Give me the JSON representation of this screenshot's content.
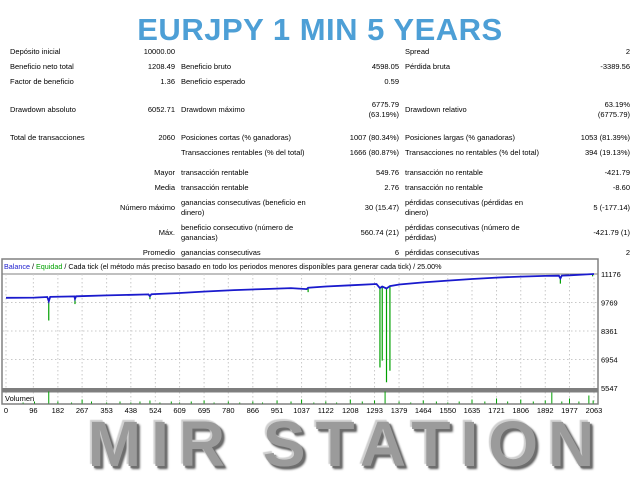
{
  "title": "EURJPY 1 MIN 5 YEARS",
  "watermark": "MIR STATION",
  "colors": {
    "title_blue": "#4d9fd6",
    "balance": "#1a1acd",
    "equity": "#00a000",
    "grid": "#c8c8c8",
    "border": "#808080",
    "watermark_gray": "#9b9b9b"
  },
  "stats": {
    "rows": [
      [
        "Depósito inicial",
        "10000.00",
        "",
        "",
        "Spread",
        "2"
      ],
      [
        "Beneficio neto total",
        "1208.49",
        "Beneficio bruto",
        "4598.05",
        "Pérdida bruta",
        "-3389.56"
      ],
      [
        "Factor de beneficio",
        "1.36",
        "Beneficio esperado",
        "0.59",
        "",
        ""
      ],
      [
        "Drawdown absoluto",
        "6052.71",
        "Drawdown máximo",
        "6775.79\n(63.19%)",
        "Drawdown relativo",
        "63.19%\n(6775.79)"
      ],
      [
        "Total de transacciones",
        "2060",
        "Posiciones cortas (% ganadoras)",
        "1007 (80.34%)",
        "Posiciones largas (% ganadoras)",
        "1053 (81.39%)"
      ],
      [
        "",
        "",
        "Transacciones rentables (% del total)",
        "1666 (80.87%)",
        "Transacciones no rentables (% del total)",
        "394 (19.13%)"
      ],
      [
        "Mayor",
        "",
        "transacción rentable",
        "549.76",
        "transacción no rentable",
        "-421.79"
      ],
      [
        "Media",
        "",
        "transacción rentable",
        "2.76",
        "transacción no rentable",
        "-8.60"
      ],
      [
        "Número máximo",
        "",
        "ganancias consecutivas (beneficio en\ndinero)",
        "30 (15.47)",
        "pérdidas consecutivas (pérdidas en\ndinero)",
        "5 (-177.14)"
      ],
      [
        "Máx.",
        "",
        "beneficio consecutivo (número de\nganancias)",
        "560.74 (21)",
        "pérdidas consecutivas (número de\npérdidas)",
        "-421.79 (1)"
      ],
      [
        "Promedio",
        "",
        "ganancias consecutivas",
        "6",
        "pérdidas consecutivas",
        "2"
      ]
    ]
  },
  "chart_data": {
    "type": "line",
    "header": {
      "balance_label": "Balance",
      "equity_label": "Equidad",
      "description": "Cada tick (el método más preciso basado en todo los periodos menores disponibles para generar cada tick)",
      "quality": "25.00%"
    },
    "volume_label": "Volumen",
    "xlim": [
      0,
      2063
    ],
    "ylim": [
      5547,
      11176
    ],
    "x_ticks": [
      0,
      96,
      182,
      267,
      353,
      438,
      524,
      609,
      695,
      780,
      866,
      951,
      1037,
      1122,
      1208,
      1293,
      1379,
      1464,
      1550,
      1635,
      1721,
      1806,
      1892,
      1977,
      2063
    ],
    "y_ticks": [
      5547,
      6954,
      8361,
      9769,
      11176
    ],
    "grid": true,
    "legend_position": "top-left",
    "balance": [
      [
        0,
        10000
      ],
      [
        100,
        10010
      ],
      [
        145,
        10040
      ],
      [
        150,
        9830
      ],
      [
        155,
        10045
      ],
      [
        240,
        10070
      ],
      [
        242,
        9950
      ],
      [
        246,
        10075
      ],
      [
        353,
        10120
      ],
      [
        500,
        10170
      ],
      [
        505,
        10080
      ],
      [
        510,
        10180
      ],
      [
        609,
        10240
      ],
      [
        700,
        10310
      ],
      [
        800,
        10380
      ],
      [
        900,
        10430
      ],
      [
        1000,
        10480
      ],
      [
        1055,
        10430
      ],
      [
        1060,
        10500
      ],
      [
        1122,
        10560
      ],
      [
        1208,
        10620
      ],
      [
        1300,
        10680
      ],
      [
        1312,
        10480
      ],
      [
        1320,
        10560
      ],
      [
        1335,
        10460
      ],
      [
        1347,
        10580
      ],
      [
        1380,
        10660
      ],
      [
        1464,
        10760
      ],
      [
        1550,
        10850
      ],
      [
        1635,
        10930
      ],
      [
        1721,
        11000
      ],
      [
        1806,
        11050
      ],
      [
        1892,
        11080
      ],
      [
        1940,
        11090
      ],
      [
        1945,
        10960
      ],
      [
        1950,
        11095
      ],
      [
        1977,
        11110
      ],
      [
        2030,
        11150
      ],
      [
        2063,
        11176
      ]
    ],
    "equity_spikes": [
      [
        150,
        8880
      ],
      [
        242,
        9690
      ],
      [
        505,
        9930
      ],
      [
        1060,
        10280
      ],
      [
        1312,
        6560
      ],
      [
        1320,
        6900
      ],
      [
        1335,
        5830
      ],
      [
        1347,
        6400
      ],
      [
        1945,
        10700
      ],
      [
        2058,
        11060
      ]
    ],
    "volume_bars": [
      [
        60,
        1
      ],
      [
        100,
        2
      ],
      [
        150,
        12
      ],
      [
        182,
        2
      ],
      [
        230,
        1
      ],
      [
        267,
        4
      ],
      [
        300,
        2
      ],
      [
        353,
        1
      ],
      [
        400,
        2
      ],
      [
        438,
        1
      ],
      [
        470,
        2
      ],
      [
        505,
        3
      ],
      [
        540,
        1
      ],
      [
        580,
        2
      ],
      [
        609,
        1
      ],
      [
        650,
        2
      ],
      [
        695,
        3
      ],
      [
        730,
        1
      ],
      [
        780,
        2
      ],
      [
        820,
        1
      ],
      [
        866,
        2
      ],
      [
        900,
        1
      ],
      [
        951,
        3
      ],
      [
        1000,
        2
      ],
      [
        1037,
        4
      ],
      [
        1080,
        1
      ],
      [
        1122,
        2
      ],
      [
        1160,
        1
      ],
      [
        1208,
        4
      ],
      [
        1250,
        2
      ],
      [
        1293,
        3
      ],
      [
        1330,
        12
      ],
      [
        1379,
        2
      ],
      [
        1420,
        1
      ],
      [
        1464,
        3
      ],
      [
        1510,
        2
      ],
      [
        1550,
        1
      ],
      [
        1590,
        2
      ],
      [
        1635,
        4
      ],
      [
        1680,
        2
      ],
      [
        1721,
        5
      ],
      [
        1760,
        2
      ],
      [
        1806,
        4
      ],
      [
        1850,
        2
      ],
      [
        1892,
        3
      ],
      [
        1915,
        11
      ],
      [
        1950,
        2
      ],
      [
        1977,
        5
      ],
      [
        2010,
        2
      ],
      [
        2045,
        8
      ],
      [
        2060,
        3
      ]
    ]
  }
}
